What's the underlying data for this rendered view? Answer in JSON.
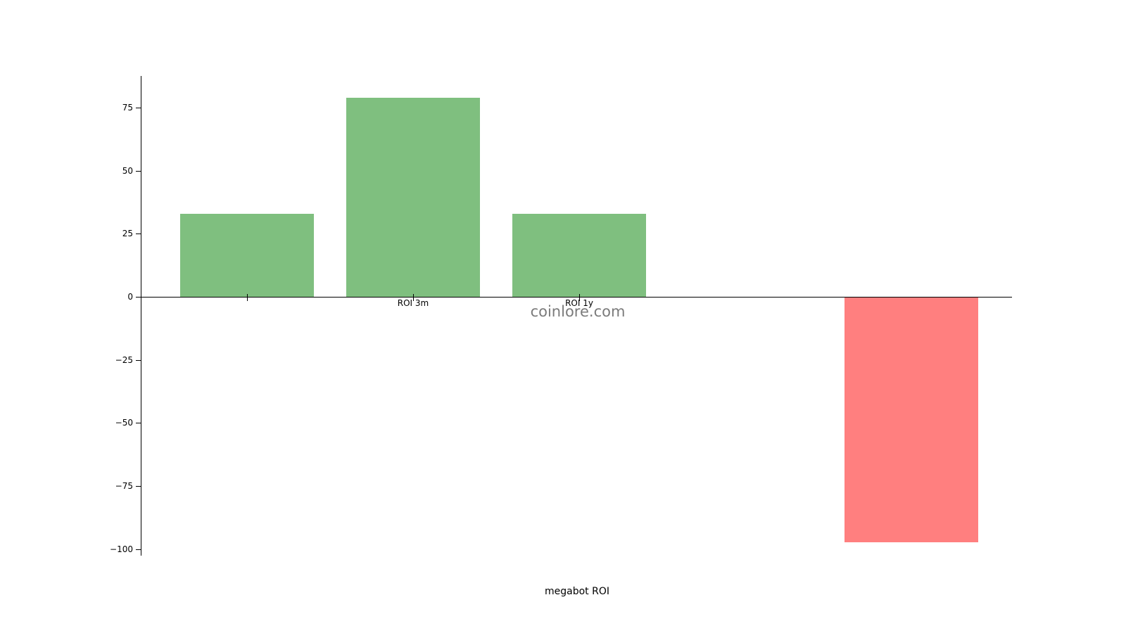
{
  "watermark": {
    "text": "coinlore.com",
    "color": "#7b7b7b"
  },
  "chart_data": {
    "type": "bar",
    "title": "",
    "xlabel": "megabot ROI",
    "ylabel": "",
    "ylim": [
      -103,
      88
    ],
    "grid": false,
    "legend": null,
    "background": "#ffffff",
    "colors": {
      "positive_bar": "#7fbf7f",
      "negative_bar": "#ff7f7f",
      "axis": "#000000",
      "watermark": "#7b7b7b"
    },
    "y_ticks": [
      {
        "value": 75,
        "label": "75"
      },
      {
        "value": 50,
        "label": "50"
      },
      {
        "value": 25,
        "label": "25"
      },
      {
        "value": 0,
        "label": "0"
      },
      {
        "value": -25,
        "label": "−25"
      },
      {
        "value": -50,
        "label": "−50"
      },
      {
        "value": -75,
        "label": "−75"
      },
      {
        "value": -100,
        "label": "−100"
      }
    ],
    "x_ticks": [
      {
        "slot": 0,
        "label": ""
      },
      {
        "slot": 1,
        "label": "ROI 3m"
      },
      {
        "slot": 2,
        "label": "ROI 1y"
      }
    ],
    "bars": [
      {
        "slot": 0,
        "name": "bar-1",
        "tick_label": "",
        "value": 33,
        "color": "#7fbf7f"
      },
      {
        "slot": 1,
        "name": "bar-roi-3m",
        "tick_label": "ROI 3m",
        "value": 79,
        "color": "#7fbf7f"
      },
      {
        "slot": 2,
        "name": "bar-roi-1y",
        "tick_label": "ROI 1y",
        "value": 33,
        "color": "#7fbf7f"
      },
      {
        "slot": 4,
        "name": "bar-4",
        "tick_label": "",
        "value": -97,
        "color": "#ff7f7f"
      }
    ]
  }
}
